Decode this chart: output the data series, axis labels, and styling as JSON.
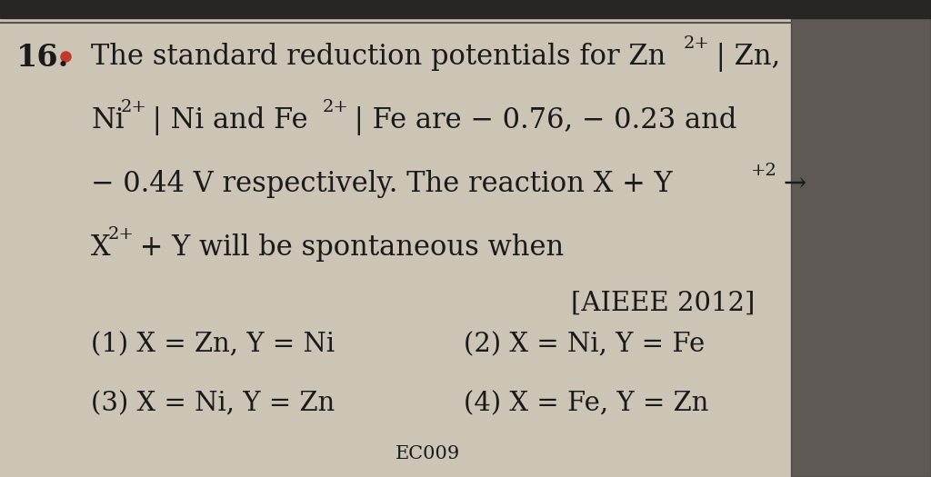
{
  "background_color": "#ccc4b5",
  "question_number": "16.",
  "bullet_color": "#c0392b",
  "text_color": "#1a1a1a",
  "source": "[AIEEE 2012]",
  "opt1": "(1) X = Zn, Y = Ni",
  "opt2": "(2) X = Ni, Y = Fe",
  "opt3": "(3) X = Ni, Y = Zn",
  "opt4": "(4) X = Fe, Y = Zn",
  "footer": "EC009",
  "dark_bar_color": "#2a2525",
  "shadow_color": "#5a5050"
}
